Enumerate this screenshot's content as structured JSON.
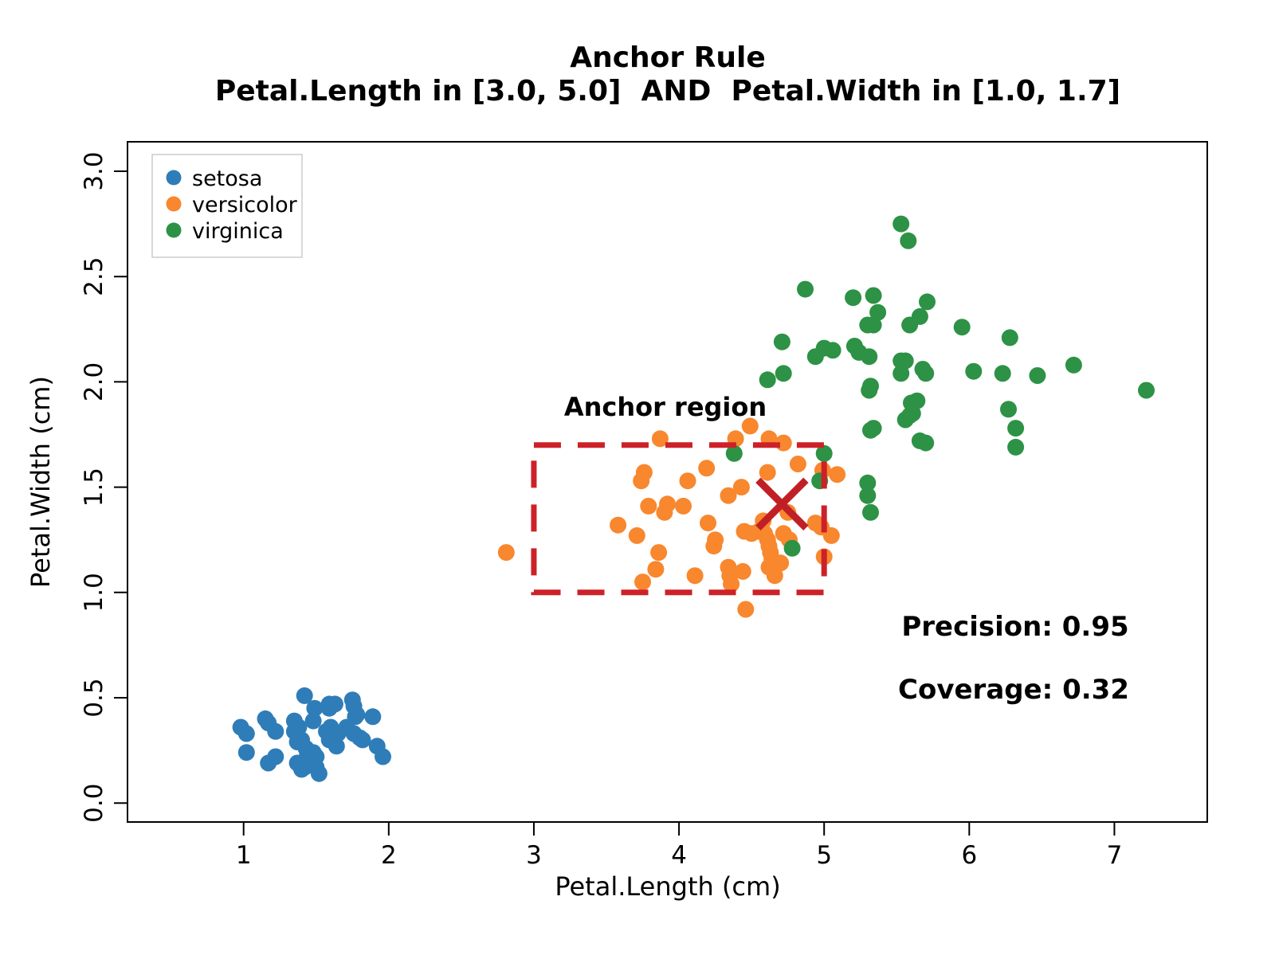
{
  "chart_data": {
    "type": "scatter",
    "title": "Anchor Rule",
    "subtitle": "Petal.Length in [3.0, 5.0]  AND  Petal.Width in [1.0, 1.7]",
    "xlabel": "Petal.Length (cm)",
    "ylabel": "Petal.Width (cm)",
    "xlim": [
      0.2,
      7.64
    ],
    "ylim": [
      -0.09,
      3.14
    ],
    "xticks": [
      1,
      2,
      3,
      4,
      5,
      6,
      7
    ],
    "xtick_labels": [
      "1",
      "2",
      "3",
      "4",
      "5",
      "6",
      "7"
    ],
    "yticks": [
      0.0,
      0.5,
      1.0,
      1.5,
      2.0,
      2.5,
      3.0
    ],
    "ytick_labels": [
      "0.0",
      "0.5",
      "1.0",
      "1.5",
      "2.0",
      "2.5",
      "3.0"
    ],
    "grid": false,
    "legend_position": "upper left",
    "series": [
      {
        "name": "setosa",
        "color": "#2f7db8",
        "points": [
          [
            0.98,
            0.36
          ],
          [
            1.02,
            0.33
          ],
          [
            1.02,
            0.24
          ],
          [
            1.15,
            0.4
          ],
          [
            1.17,
            0.38
          ],
          [
            1.17,
            0.19
          ],
          [
            1.22,
            0.34
          ],
          [
            1.22,
            0.22
          ],
          [
            1.35,
            0.39
          ],
          [
            1.35,
            0.34
          ],
          [
            1.38,
            0.36
          ],
          [
            1.38,
            0.31
          ],
          [
            1.37,
            0.29
          ],
          [
            1.4,
            0.3
          ],
          [
            1.42,
            0.51
          ],
          [
            1.43,
            0.26
          ],
          [
            1.37,
            0.19
          ],
          [
            1.4,
            0.16
          ],
          [
            1.42,
            0.17
          ],
          [
            1.44,
            0.23
          ],
          [
            1.47,
            0.2
          ],
          [
            1.48,
            0.24
          ],
          [
            1.49,
            0.45
          ],
          [
            1.48,
            0.39
          ],
          [
            1.5,
            0.22
          ],
          [
            1.5,
            0.17
          ],
          [
            1.52,
            0.14
          ],
          [
            1.59,
            0.47
          ],
          [
            1.59,
            0.45
          ],
          [
            1.57,
            0.34
          ],
          [
            1.6,
            0.36
          ],
          [
            1.59,
            0.3
          ],
          [
            1.61,
            0.31
          ],
          [
            1.65,
            0.33
          ],
          [
            1.64,
            0.27
          ],
          [
            1.63,
            0.47
          ],
          [
            1.71,
            0.36
          ],
          [
            1.75,
            0.49
          ],
          [
            1.76,
            0.46
          ],
          [
            1.77,
            0.41
          ],
          [
            1.78,
            0.42
          ],
          [
            1.76,
            0.33
          ],
          [
            1.8,
            0.31
          ],
          [
            1.82,
            0.3
          ],
          [
            1.89,
            0.41
          ],
          [
            1.92,
            0.27
          ],
          [
            1.96,
            0.22
          ]
        ]
      },
      {
        "name": "versicolor",
        "color": "#f8872e",
        "points": [
          [
            2.81,
            1.19
          ],
          [
            3.58,
            1.32
          ],
          [
            3.71,
            1.27
          ],
          [
            3.74,
            1.53
          ],
          [
            3.76,
            1.57
          ],
          [
            3.79,
            1.41
          ],
          [
            3.86,
            1.19
          ],
          [
            3.84,
            1.11
          ],
          [
            3.75,
            1.05
          ],
          [
            3.87,
            1.73
          ],
          [
            3.92,
            1.42
          ],
          [
            3.9,
            1.38
          ],
          [
            4.03,
            1.41
          ],
          [
            4.06,
            1.53
          ],
          [
            4.11,
            1.08
          ],
          [
            4.19,
            1.59
          ],
          [
            4.2,
            1.33
          ],
          [
            4.25,
            1.25
          ],
          [
            4.24,
            1.22
          ],
          [
            4.34,
            1.46
          ],
          [
            4.39,
            1.73
          ],
          [
            4.34,
            1.12
          ],
          [
            4.35,
            1.08
          ],
          [
            4.36,
            1.04
          ],
          [
            4.43,
            1.5
          ],
          [
            4.44,
            1.1
          ],
          [
            4.45,
            1.29
          ],
          [
            4.5,
            1.28
          ],
          [
            4.49,
            1.79
          ],
          [
            4.46,
            0.92
          ],
          [
            4.55,
            1.29
          ],
          [
            4.58,
            1.34
          ],
          [
            4.59,
            1.28
          ],
          [
            4.61,
            1.25
          ],
          [
            4.62,
            1.22
          ],
          [
            4.63,
            1.19
          ],
          [
            4.64,
            1.16
          ],
          [
            4.62,
            1.12
          ],
          [
            4.66,
            1.08
          ],
          [
            4.62,
            1.73
          ],
          [
            4.61,
            1.57
          ],
          [
            4.7,
            1.14
          ],
          [
            4.72,
            1.28
          ],
          [
            4.76,
            1.25
          ],
          [
            4.75,
            1.38
          ],
          [
            4.72,
            1.71
          ],
          [
            4.82,
            1.61
          ],
          [
            4.99,
            1.58
          ],
          [
            5.0,
            1.17
          ],
          [
            4.94,
            1.33
          ],
          [
            4.98,
            1.31
          ],
          [
            5.05,
            1.27
          ],
          [
            5.09,
            1.56
          ]
        ]
      },
      {
        "name": "virginica",
        "color": "#2d9245",
        "points": [
          [
            4.38,
            1.66
          ],
          [
            4.78,
            1.21
          ],
          [
            4.61,
            2.01
          ],
          [
            4.72,
            2.04
          ],
          [
            4.71,
            2.19
          ],
          [
            4.87,
            2.44
          ],
          [
            4.97,
            1.53
          ],
          [
            5.0,
            1.66
          ],
          [
            5.3,
            1.52
          ],
          [
            5.3,
            1.46
          ],
          [
            5.32,
            1.38
          ],
          [
            4.94,
            2.12
          ],
          [
            5.0,
            2.16
          ],
          [
            5.06,
            2.15
          ],
          [
            5.2,
            2.4
          ],
          [
            5.21,
            2.17
          ],
          [
            5.24,
            2.14
          ],
          [
            5.31,
            2.12
          ],
          [
            5.32,
            1.98
          ],
          [
            5.31,
            1.96
          ],
          [
            5.34,
            2.41
          ],
          [
            5.37,
            2.33
          ],
          [
            5.3,
            2.27
          ],
          [
            5.34,
            2.27
          ],
          [
            5.32,
            1.77
          ],
          [
            5.34,
            1.78
          ],
          [
            5.53,
            2.75
          ],
          [
            5.58,
            2.67
          ],
          [
            5.53,
            2.1
          ],
          [
            5.56,
            2.1
          ],
          [
            5.53,
            2.04
          ],
          [
            5.59,
            2.27
          ],
          [
            5.66,
            2.31
          ],
          [
            5.71,
            2.38
          ],
          [
            5.6,
            1.9
          ],
          [
            5.64,
            1.91
          ],
          [
            5.61,
            1.85
          ],
          [
            5.56,
            1.82
          ],
          [
            5.59,
            1.84
          ],
          [
            5.66,
            1.72
          ],
          [
            5.7,
            1.71
          ],
          [
            5.68,
            2.06
          ],
          [
            5.7,
            2.04
          ],
          [
            5.95,
            2.26
          ],
          [
            6.03,
            2.05
          ],
          [
            6.23,
            2.04
          ],
          [
            6.28,
            2.21
          ],
          [
            6.47,
            2.03
          ],
          [
            6.72,
            2.08
          ],
          [
            6.27,
            1.87
          ],
          [
            6.32,
            1.78
          ],
          [
            6.32,
            1.69
          ],
          [
            7.22,
            1.96
          ]
        ]
      }
    ],
    "anchor_region": {
      "label": "Anchor region",
      "x_range": [
        3.0,
        5.0
      ],
      "y_range": [
        1.0,
        1.7
      ],
      "color": "#cd2128"
    },
    "anchor_point": {
      "x": 4.71,
      "y": 1.42,
      "marker": "x",
      "color": "#c11f26"
    },
    "metrics": {
      "precision_label": "Precision: 0.95",
      "coverage_label": "Coverage: 0.32",
      "precision": 0.95,
      "coverage": 0.32,
      "color": "#15569e"
    }
  }
}
